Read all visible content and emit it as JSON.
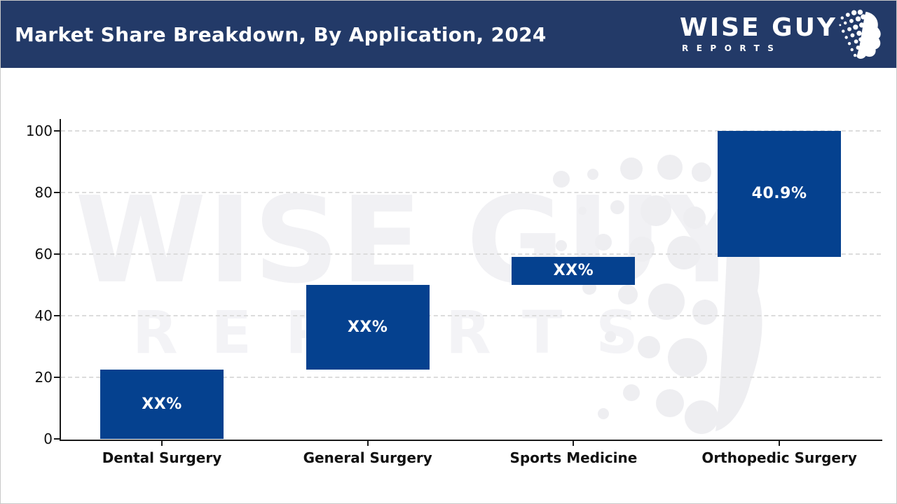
{
  "header": {
    "title": "Market Share Breakdown, By Application, 2024",
    "logo": {
      "line1": "WISE GUY",
      "line2": "REPORTS"
    }
  },
  "watermark": {
    "line1": "WISE GUY",
    "line2": "REPORTS"
  },
  "icons": {
    "logo_face": "dotted-face-profile",
    "watermark_face": "dotted-face-profile"
  },
  "colors": {
    "header_bg": "#233a68",
    "bar": "#05418f",
    "grid": "#dcdcdc",
    "watermark": "#f1f1f4",
    "watermark2": "#f3f3f6",
    "axis": "#1a1a1a"
  },
  "chart_data": {
    "type": "bar",
    "subtype": "waterfall",
    "title": "Market Share Breakdown, By Application, 2024",
    "categories": [
      "Dental Surgery",
      "General Surgery",
      "Sports Medicine",
      "Orthopedic Surgery"
    ],
    "segments": [
      {
        "category": "Dental Surgery",
        "start": 0,
        "end": 22.5,
        "label": "XX%"
      },
      {
        "category": "General Surgery",
        "start": 22.5,
        "end": 50,
        "label": "XX%"
      },
      {
        "category": "Sports Medicine",
        "start": 50,
        "end": 59.1,
        "label": "XX%"
      },
      {
        "category": "Orthopedic Surgery",
        "start": 59.1,
        "end": 100,
        "label": "40.9%"
      }
    ],
    "ylim": [
      0,
      100
    ],
    "yticks": [
      0,
      20,
      40,
      60,
      80,
      100
    ],
    "xlabel": "",
    "ylabel": "",
    "grid": "horizontal-dashed",
    "legend": "none"
  }
}
